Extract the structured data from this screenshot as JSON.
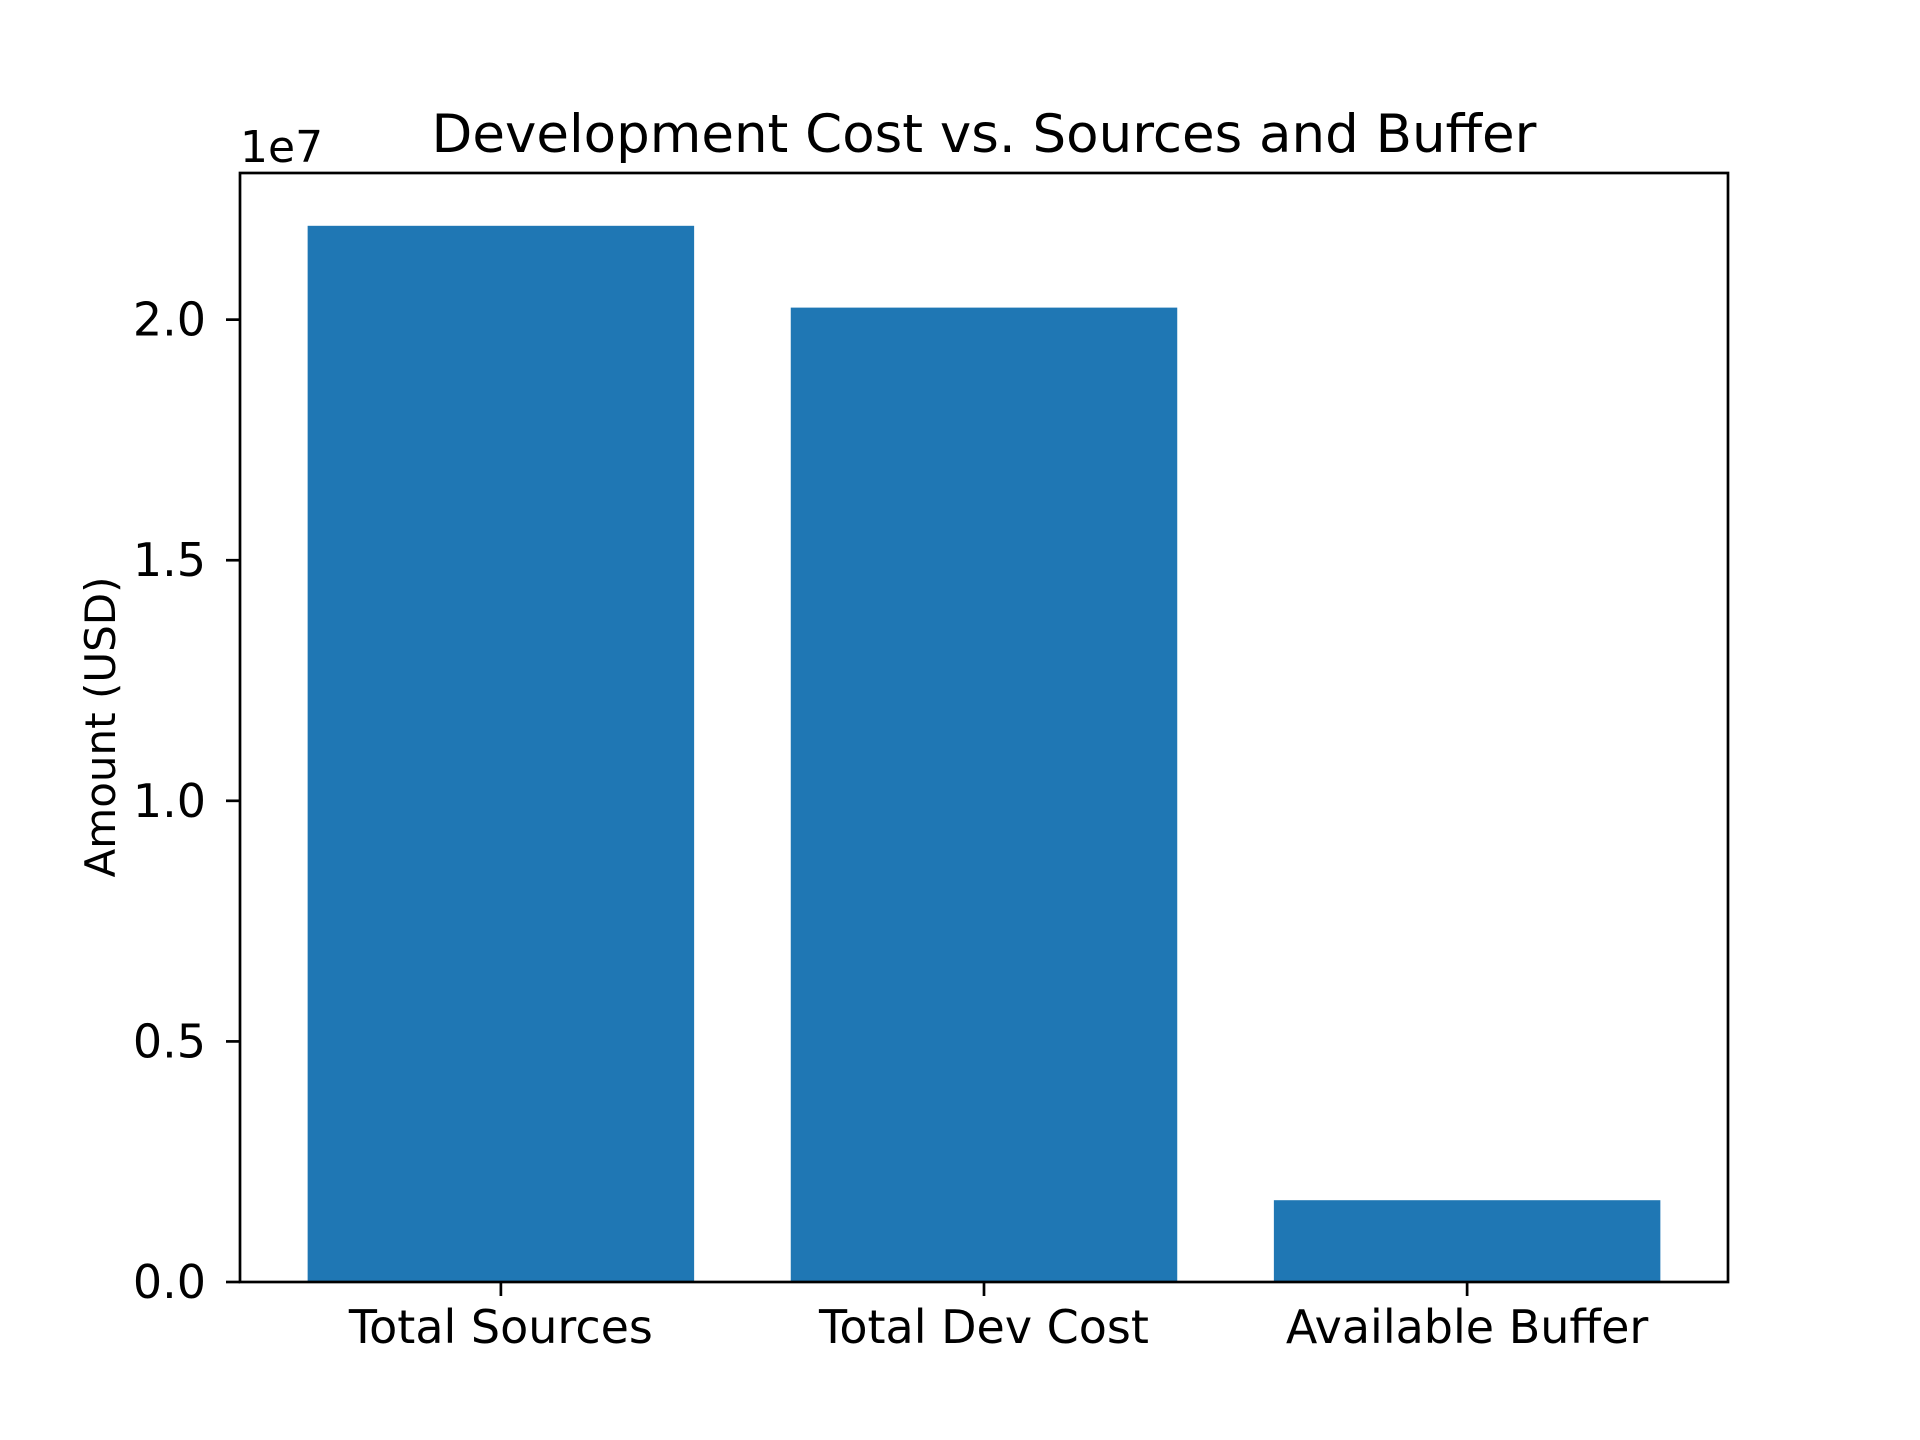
{
  "figure": {
    "background": "#ffffff"
  },
  "chart_data": {
    "type": "bar",
    "title": "Development Cost vs. Sources and Buffer",
    "xlabel": "",
    "ylabel": "Amount (USD)",
    "offset_label": "1e7",
    "categories": [
      "Total Sources",
      "Total Dev Cost",
      "Available Buffer"
    ],
    "values": [
      21950000,
      20250000,
      1700000
    ],
    "series": [
      {
        "name": "Amount (USD)",
        "values": [
          21950000,
          20250000,
          1700000
        ]
      }
    ],
    "ylim": [
      0,
      23047500
    ],
    "y_ticks": {
      "values": [
        0,
        5000000,
        10000000,
        15000000,
        20000000
      ],
      "labels": [
        "0.0",
        "0.5",
        "1.0",
        "1.5",
        "2.0"
      ]
    },
    "grid": false,
    "legend": false,
    "bar_color": "#1f77b4",
    "axis_color": "#000000",
    "text_color": "#000000"
  }
}
